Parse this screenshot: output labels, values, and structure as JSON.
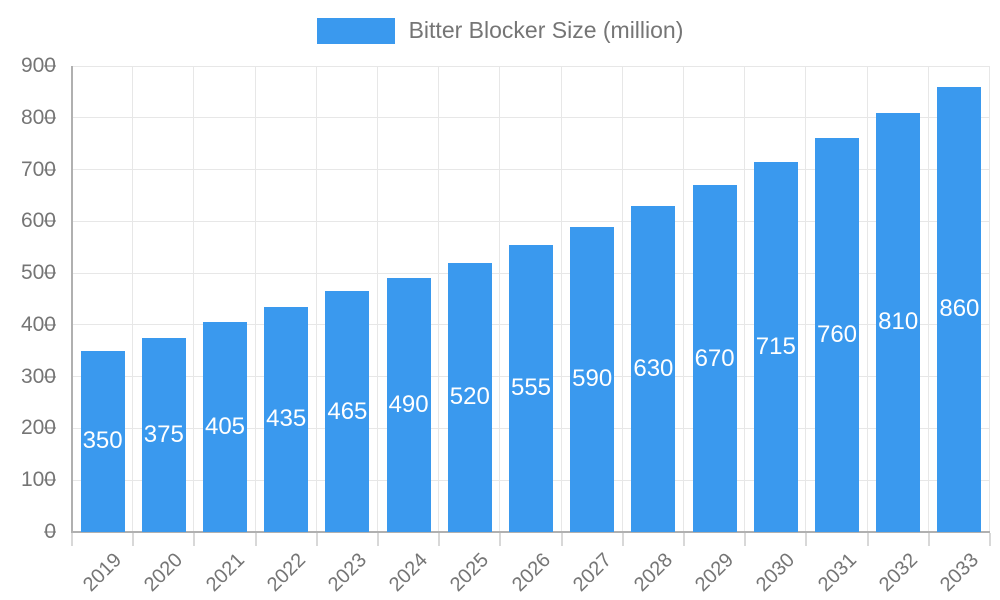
{
  "chart_data": {
    "type": "bar",
    "title": "Bitter Blocker Size (million)",
    "categories": [
      "2019",
      "2020",
      "2021",
      "2022",
      "2023",
      "2024",
      "2025",
      "2026",
      "2027",
      "2028",
      "2029",
      "2030",
      "2031",
      "2032",
      "2033"
    ],
    "series": [
      {
        "name": "Bitter Blocker Size (million)",
        "values": [
          350,
          375,
          405,
          435,
          465,
          490,
          520,
          555,
          590,
          630,
          670,
          715,
          760,
          810,
          860
        ]
      }
    ],
    "xlabel": "",
    "ylabel": "",
    "ylim": [
      0,
      900
    ],
    "y_ticks": [
      0,
      100,
      200,
      300,
      400,
      500,
      600,
      700,
      800,
      900
    ],
    "grid": true,
    "legend_position": "top",
    "value_label_position": "inside-center"
  },
  "style": {
    "bar_color": "#3A99EE",
    "grid_color": "#E7E7E7",
    "axis_color": "#B0B0B0",
    "y_tick_color": "#B8B8B8",
    "x_tick_color": "#D8D8D8",
    "text_color": "#757575",
    "value_label_color": "#FFFFFF",
    "background_color": "#FFFFFF"
  }
}
